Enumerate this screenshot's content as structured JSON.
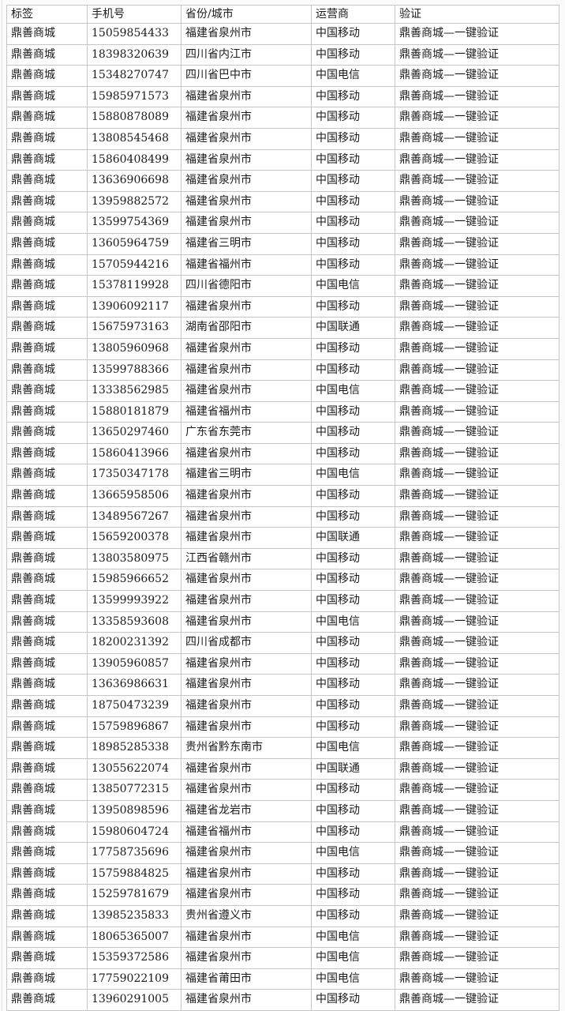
{
  "colors": {
    "page_background": "#fbfbfb",
    "table_background": "#ffffff",
    "grid_line": "#c6c6c6",
    "outer_border": "#9c9c9c",
    "text": "#1b1b1b"
  },
  "table": {
    "columns": [
      "标签",
      "手机号",
      "省份/城市",
      "运营商",
      "验证"
    ],
    "rows": [
      [
        "鼎善商城",
        "15059854433",
        "福建省泉州市",
        "中国移动",
        "鼎善商城—一键验证"
      ],
      [
        "鼎善商城",
        "18398320639",
        "四川省内江市",
        "中国移动",
        "鼎善商城—一键验证"
      ],
      [
        "鼎善商城",
        "15348270747",
        "四川省巴中市",
        "中国电信",
        "鼎善商城—一键验证"
      ],
      [
        "鼎善商城",
        "15985971573",
        "福建省泉州市",
        "中国移动",
        "鼎善商城—一键验证"
      ],
      [
        "鼎善商城",
        "15880878089",
        "福建省泉州市",
        "中国移动",
        "鼎善商城—一键验证"
      ],
      [
        "鼎善商城",
        "13808545468",
        "福建省泉州市",
        "中国移动",
        "鼎善商城—一键验证"
      ],
      [
        "鼎善商城",
        "15860408499",
        "福建省泉州市",
        "中国移动",
        "鼎善商城—一键验证"
      ],
      [
        "鼎善商城",
        "13636906698",
        "福建省泉州市",
        "中国移动",
        "鼎善商城—一键验证"
      ],
      [
        "鼎善商城",
        "13959882572",
        "福建省泉州市",
        "中国移动",
        "鼎善商城—一键验证"
      ],
      [
        "鼎善商城",
        "13599754369",
        "福建省泉州市",
        "中国移动",
        "鼎善商城—一键验证"
      ],
      [
        "鼎善商城",
        "13605964759",
        "福建省三明市",
        "中国移动",
        "鼎善商城—一键验证"
      ],
      [
        "鼎善商城",
        "15705944216",
        "福建省福州市",
        "中国移动",
        "鼎善商城—一键验证"
      ],
      [
        "鼎善商城",
        "15378119928",
        "四川省德阳市",
        "中国电信",
        "鼎善商城—一键验证"
      ],
      [
        "鼎善商城",
        "13906092117",
        "福建省泉州市",
        "中国移动",
        "鼎善商城—一键验证"
      ],
      [
        "鼎善商城",
        "15675973163",
        "湖南省邵阳市",
        "中国联通",
        "鼎善商城—一键验证"
      ],
      [
        "鼎善商城",
        "13805960968",
        "福建省泉州市",
        "中国移动",
        "鼎善商城—一键验证"
      ],
      [
        "鼎善商城",
        "13599788366",
        "福建省泉州市",
        "中国移动",
        "鼎善商城—一键验证"
      ],
      [
        "鼎善商城",
        "13338562985",
        "福建省泉州市",
        "中国电信",
        "鼎善商城—一键验证"
      ],
      [
        "鼎善商城",
        "15880181879",
        "福建省福州市",
        "中国移动",
        "鼎善商城—一键验证"
      ],
      [
        "鼎善商城",
        "13650297460",
        "广东省东莞市",
        "中国移动",
        "鼎善商城—一键验证"
      ],
      [
        "鼎善商城",
        "15860413966",
        "福建省泉州市",
        "中国移动",
        "鼎善商城—一键验证"
      ],
      [
        "鼎善商城",
        "17350347178",
        "福建省三明市",
        "中国电信",
        "鼎善商城—一键验证"
      ],
      [
        "鼎善商城",
        "13665958506",
        "福建省泉州市",
        "中国移动",
        "鼎善商城—一键验证"
      ],
      [
        "鼎善商城",
        "13489567267",
        "福建省泉州市",
        "中国移动",
        "鼎善商城—一键验证"
      ],
      [
        "鼎善商城",
        "15659200378",
        "福建省泉州市",
        "中国联通",
        "鼎善商城—一键验证"
      ],
      [
        "鼎善商城",
        "13803580975",
        "江西省赣州市",
        "中国移动",
        "鼎善商城—一键验证"
      ],
      [
        "鼎善商城",
        "15985966652",
        "福建省泉州市",
        "中国移动",
        "鼎善商城—一键验证"
      ],
      [
        "鼎善商城",
        "13599993922",
        "福建省泉州市",
        "中国移动",
        "鼎善商城—一键验证"
      ],
      [
        "鼎善商城",
        "13358593608",
        "福建省泉州市",
        "中国电信",
        "鼎善商城—一键验证"
      ],
      [
        "鼎善商城",
        "18200231392",
        "四川省成都市",
        "中国移动",
        "鼎善商城—一键验证"
      ],
      [
        "鼎善商城",
        "13905960857",
        "福建省泉州市",
        "中国移动",
        "鼎善商城—一键验证"
      ],
      [
        "鼎善商城",
        "13636986631",
        "福建省泉州市",
        "中国移动",
        "鼎善商城—一键验证"
      ],
      [
        "鼎善商城",
        "18750473239",
        "福建省泉州市",
        "中国移动",
        "鼎善商城—一键验证"
      ],
      [
        "鼎善商城",
        "15759896867",
        "福建省泉州市",
        "中国移动",
        "鼎善商城—一键验证"
      ],
      [
        "鼎善商城",
        "18985285338",
        "贵州省黔东南市",
        "中国电信",
        "鼎善商城—一键验证"
      ],
      [
        "鼎善商城",
        "13055622074",
        "福建省泉州市",
        "中国联通",
        "鼎善商城—一键验证"
      ],
      [
        "鼎善商城",
        "13850772315",
        "福建省泉州市",
        "中国移动",
        "鼎善商城—一键验证"
      ],
      [
        "鼎善商城",
        "13950898596",
        "福建省龙岩市",
        "中国移动",
        "鼎善商城—一键验证"
      ],
      [
        "鼎善商城",
        "15980604724",
        "福建省福州市",
        "中国移动",
        "鼎善商城—一键验证"
      ],
      [
        "鼎善商城",
        "17758735696",
        "福建省泉州市",
        "中国电信",
        "鼎善商城—一键验证"
      ],
      [
        "鼎善商城",
        "15759884825",
        "福建省泉州市",
        "中国移动",
        "鼎善商城—一键验证"
      ],
      [
        "鼎善商城",
        "15259781679",
        "福建省泉州市",
        "中国移动",
        "鼎善商城—一键验证"
      ],
      [
        "鼎善商城",
        "13985235833",
        "贵州省遵义市",
        "中国移动",
        "鼎善商城—一键验证"
      ],
      [
        "鼎善商城",
        "18065365007",
        "福建省泉州市",
        "中国电信",
        "鼎善商城—一键验证"
      ],
      [
        "鼎善商城",
        "15359372586",
        "福建省泉州市",
        "中国电信",
        "鼎善商城—一键验证"
      ],
      [
        "鼎善商城",
        "17759022109",
        "福建省莆田市",
        "中国电信",
        "鼎善商城—一键验证"
      ],
      [
        "鼎善商城",
        "13960291005",
        "福建省泉州市",
        "中国移动",
        "鼎善商城—一键验证"
      ]
    ]
  }
}
